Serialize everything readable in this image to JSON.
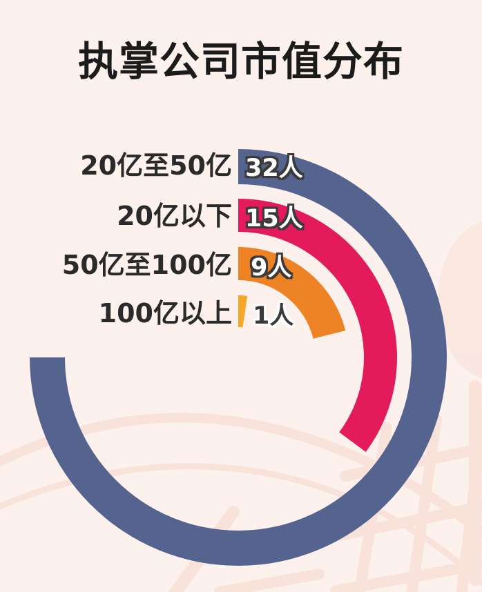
{
  "title": "执掌公司市值分布",
  "chart_data": {
    "type": "radial-bar",
    "title": "执掌公司市值分布",
    "unit": "人",
    "categories": [
      "20亿至50亿",
      "20亿以下",
      "50亿至100亿",
      "100亿以上"
    ],
    "values": [
      32,
      15,
      9,
      1
    ],
    "value_labels": [
      "32人",
      "15人",
      "9人",
      "1人"
    ],
    "value_label_styles": [
      "light-on-arc",
      "light-on-arc",
      "light-on-arc",
      "dark-on-background"
    ],
    "colors": [
      "#55648f",
      "#e31a5c",
      "#ee8326",
      "#f4a72a"
    ],
    "start_angle_deg": 0,
    "direction": "clockwise",
    "degrees_per_unit": 8.4375,
    "full_scale": {
      "value": 32,
      "angle_deg": 270
    },
    "legend": "none",
    "grid": false
  },
  "palette": {
    "background": "#fcf1ec",
    "title_text": "#1b1b1b",
    "category_text": "#2a2a2a",
    "value_text_light": "#ffffff",
    "value_outline_dark": "#3a3a3a",
    "value_text_dark": "#3a3a3a",
    "value_outline_light": "#ffffff",
    "watermark": "#f6d6cd"
  }
}
